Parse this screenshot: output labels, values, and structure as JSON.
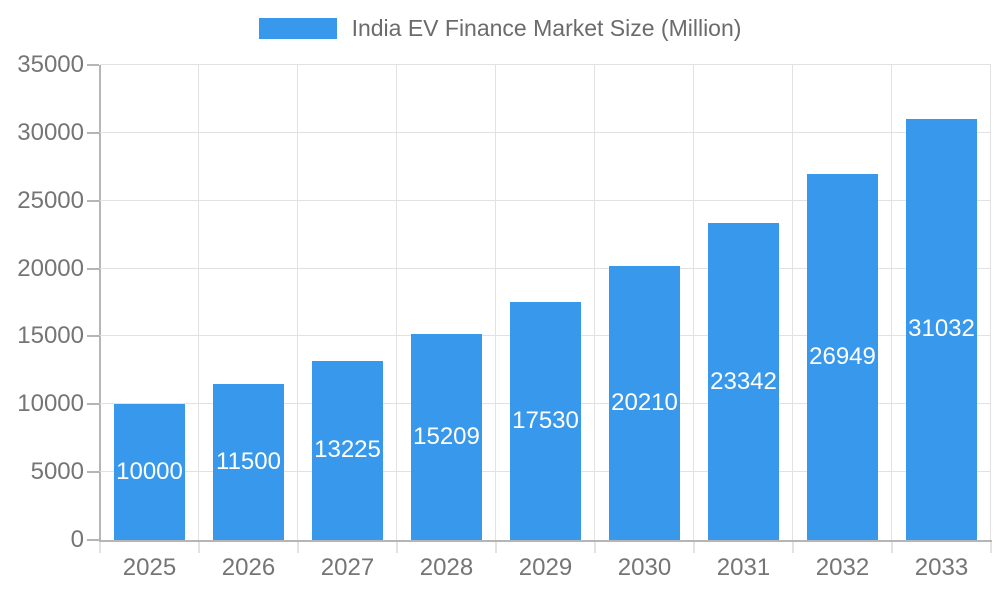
{
  "chart_data": {
    "type": "bar",
    "title": "India EV Finance Market Size (Million)",
    "legend": {
      "position": "top-center",
      "label": "India EV Finance Market Size (Million)"
    },
    "categories": [
      "2025",
      "2026",
      "2027",
      "2028",
      "2029",
      "2030",
      "2031",
      "2032",
      "2033"
    ],
    "values": [
      10000,
      11500,
      13225,
      15209,
      17530,
      20210,
      23342,
      26949,
      31032
    ],
    "data_labels_shown": true,
    "xlabel": "",
    "ylabel": "",
    "ylim": [
      0,
      35000
    ],
    "yticks": [
      0,
      5000,
      10000,
      15000,
      20000,
      25000,
      30000,
      35000
    ],
    "grid": true,
    "colors": {
      "bar": "#3898EC",
      "bar_label_text": "#FFFFFF",
      "axis_text": "#757575",
      "legend_text": "#6B6B6B",
      "gridline": "#E2E2E2",
      "axis_line": "#B5B5B5",
      "background": "#FFFFFF"
    }
  }
}
